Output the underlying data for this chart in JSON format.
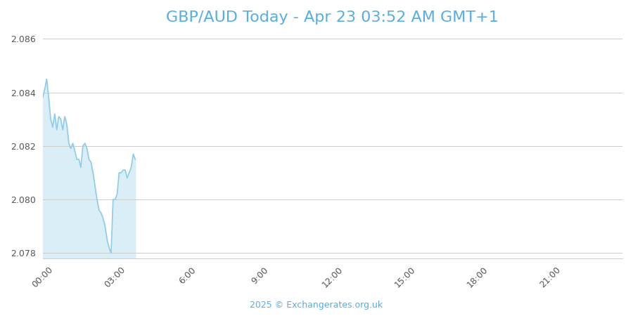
{
  "title": "GBP/AUD Today - Apr 23 03:52 AM GMT+1",
  "title_color": "#57aee2",
  "title_fontsize": 16,
  "footer_text": "2025 © Exchangerates.org.uk",
  "footer_color": "#57aee2",
  "background_color": "#ffffff",
  "line_color": "#90cce8",
  "fill_color": "#daeef8",
  "grid_color": "#cccccc",
  "ylim": [
    2.0778,
    2.0862
  ],
  "yticks": [
    2.078,
    2.08,
    2.082,
    2.084,
    2.086
  ],
  "xtick_labels": [
    "00:00",
    "03:00",
    "6:00",
    "9:00",
    "12:00",
    "15:00",
    "18:00",
    "21:00"
  ],
  "xtick_positions": [
    0,
    180,
    360,
    540,
    720,
    900,
    1080,
    1260
  ],
  "total_minutes": 1440,
  "time_data": [
    0,
    5,
    10,
    15,
    20,
    25,
    30,
    35,
    40,
    45,
    50,
    55,
    60,
    65,
    70,
    75,
    80,
    85,
    90,
    95,
    100,
    105,
    110,
    115,
    120,
    125,
    130,
    135,
    140,
    145,
    150,
    155,
    160,
    165,
    170,
    175,
    180,
    185,
    190,
    195,
    200,
    205,
    210,
    215,
    220,
    225,
    230
  ],
  "rate_data": [
    2.0838,
    2.0841,
    2.0845,
    2.0838,
    2.083,
    2.0827,
    2.0832,
    2.0826,
    2.0831,
    2.083,
    2.0826,
    2.0831,
    2.0828,
    2.0821,
    2.0819,
    2.0821,
    2.0818,
    2.0815,
    2.0815,
    2.0812,
    2.082,
    2.0821,
    2.0819,
    2.0815,
    2.0814,
    2.081,
    2.0805,
    2.08,
    2.0796,
    2.0795,
    2.0793,
    2.079,
    2.0785,
    2.0782,
    2.078,
    2.08,
    2.08,
    2.0802,
    2.081,
    2.081,
    2.0811,
    2.0811,
    2.0808,
    2.081,
    2.0812,
    2.0817,
    2.0815
  ]
}
